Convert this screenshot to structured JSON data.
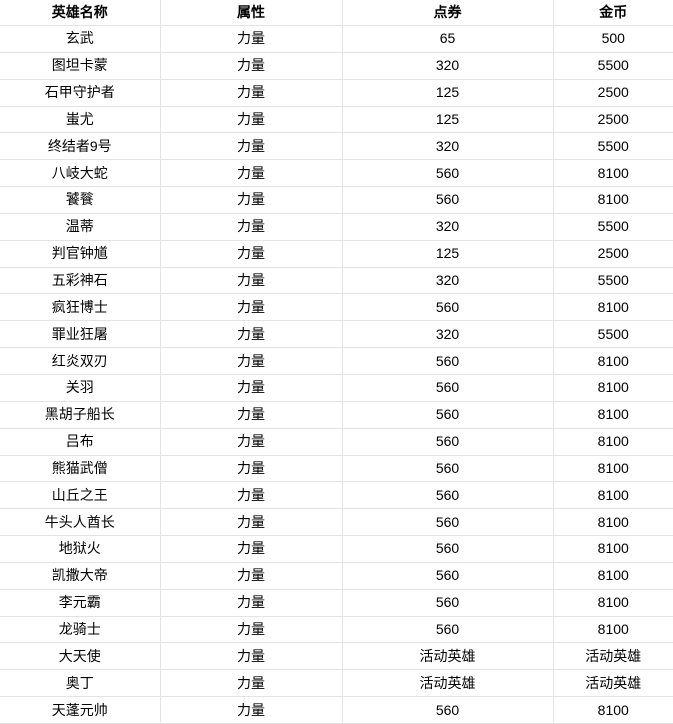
{
  "colors": {
    "background": "#ffffff",
    "border": "#e3e3e3",
    "text": "#000000"
  },
  "table": {
    "columns": [
      {
        "label": "英雄名称"
      },
      {
        "label": "属性"
      },
      {
        "label": "点券"
      },
      {
        "label": "金币"
      }
    ],
    "rows": [
      {
        "name": "玄武",
        "attr": "力量",
        "points": "65",
        "gold": "500"
      },
      {
        "name": "图坦卡蒙",
        "attr": "力量",
        "points": "320",
        "gold": "5500"
      },
      {
        "name": "石甲守护者",
        "attr": "力量",
        "points": "125",
        "gold": "2500"
      },
      {
        "name": "蚩尤",
        "attr": "力量",
        "points": "125",
        "gold": "2500"
      },
      {
        "name": "终结者9号",
        "attr": "力量",
        "points": "320",
        "gold": "5500"
      },
      {
        "name": "八岐大蛇",
        "attr": "力量",
        "points": "560",
        "gold": "8100"
      },
      {
        "name": "饕餮",
        "attr": "力量",
        "points": "560",
        "gold": "8100"
      },
      {
        "name": "温蒂",
        "attr": "力量",
        "points": "320",
        "gold": "5500"
      },
      {
        "name": "判官钟馗",
        "attr": "力量",
        "points": "125",
        "gold": "2500"
      },
      {
        "name": "五彩神石",
        "attr": "力量",
        "points": "320",
        "gold": "5500"
      },
      {
        "name": "疯狂博士",
        "attr": "力量",
        "points": "560",
        "gold": "8100"
      },
      {
        "name": "罪业狂屠",
        "attr": "力量",
        "points": "320",
        "gold": "5500"
      },
      {
        "name": "红炎双刃",
        "attr": "力量",
        "points": "560",
        "gold": "8100"
      },
      {
        "name": "关羽",
        "attr": "力量",
        "points": "560",
        "gold": "8100"
      },
      {
        "name": "黑胡子船长",
        "attr": "力量",
        "points": "560",
        "gold": "8100"
      },
      {
        "name": "吕布",
        "attr": "力量",
        "points": "560",
        "gold": "8100"
      },
      {
        "name": "熊猫武僧",
        "attr": "力量",
        "points": "560",
        "gold": "8100"
      },
      {
        "name": "山丘之王",
        "attr": "力量",
        "points": "560",
        "gold": "8100"
      },
      {
        "name": "牛头人酋长",
        "attr": "力量",
        "points": "560",
        "gold": "8100"
      },
      {
        "name": "地狱火",
        "attr": "力量",
        "points": "560",
        "gold": "8100"
      },
      {
        "name": "凯撒大帝",
        "attr": "力量",
        "points": "560",
        "gold": "8100"
      },
      {
        "name": "李元霸",
        "attr": "力量",
        "points": "560",
        "gold": "8100"
      },
      {
        "name": "龙骑士",
        "attr": "力量",
        "points": "560",
        "gold": "8100"
      },
      {
        "name": "大天使",
        "attr": "力量",
        "points": "活动英雄",
        "gold": "活动英雄"
      },
      {
        "name": "奥丁",
        "attr": "力量",
        "points": "活动英雄",
        "gold": "活动英雄"
      },
      {
        "name": "天蓬元帅",
        "attr": "力量",
        "points": "560",
        "gold": "8100"
      }
    ]
  }
}
